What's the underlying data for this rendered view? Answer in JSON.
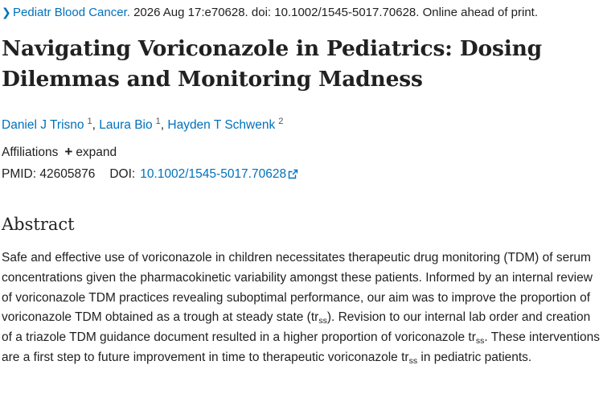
{
  "citation": {
    "journal": "Pediatr Blood Cancer.",
    "details": " 2026 Aug 17:e70628. doi: 10.1002/1545-5017.70628. Online ahead of print."
  },
  "title": "Navigating Voriconazole in Pediatrics: Dosing Dilemmas and Monitoring Madness",
  "authors": [
    {
      "name": "Daniel J Trisno",
      "aff": "1"
    },
    {
      "name": "Laura Bio",
      "aff": "1"
    },
    {
      "name": "Hayden T Schwenk",
      "aff": "2"
    }
  ],
  "affiliations": {
    "label": "Affiliations",
    "expand": "expand"
  },
  "ids": {
    "pmid_label": "PMID:",
    "pmid": "42605876",
    "doi_label": "DOI:",
    "doi": "10.1002/1545-5017.70628"
  },
  "abstract": {
    "heading": "Abstract",
    "p1": "Safe and effective use of voriconazole in children necessitates therapeutic drug monitoring (TDM) of serum concentrations given the pharmacokinetic variability amongst these patients. Informed by an internal review of voriconazole TDM practices revealing suboptimal performance, our aim was to improve the proportion of voriconazole TDM obtained as a trough at steady state (tr",
    "p1_sub": "ss",
    "p2": "). Revision to our internal lab order and creation of a triazole TDM guidance document resulted in a higher proportion of voriconazole tr",
    "p2_sub": "ss",
    "p3": ". These interventions are a first step to future improvement in time to therapeutic voriconazole tr",
    "p3_sub": "ss",
    "p4": " in pediatric patients."
  },
  "colors": {
    "link": "#0071bc",
    "text": "#212121"
  },
  "icons": {
    "breadcrumb": "chevron-right-icon",
    "expand": "plus-icon",
    "doi_link": "external-link-icon"
  }
}
